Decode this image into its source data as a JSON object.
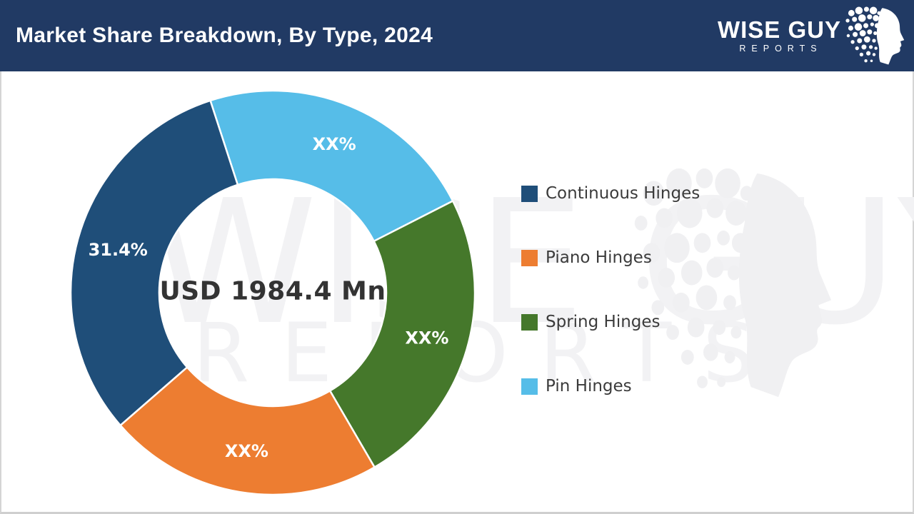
{
  "header": {
    "title": "Market Share Breakdown, By Type, 2024",
    "logo": {
      "line1": "WISE GUY",
      "line2": "REPORTS"
    }
  },
  "watermark": {
    "line1": "WISE GUY",
    "line2": "REPORTS"
  },
  "icons": {
    "logo_face": "wise-guy-dotted-face-profile",
    "watermark_face": "wise-guy-dotted-face-profile"
  },
  "colors": {
    "header_bg": "#213a64",
    "continuous": "#1f4e79",
    "piano": "#ed7d31",
    "spring": "#45782b",
    "pin": "#56bde8",
    "watermark": "#f2f2f4",
    "segment_label": "#ffffff",
    "center_text": "#333333",
    "legend_text": "#3b3b3b"
  },
  "chart_data": {
    "type": "pie",
    "subtype": "donut",
    "title": "Market Share Breakdown, By Type, 2024",
    "center_label": "USD 1984.4 Mn",
    "start_angle_deg": -18,
    "direction": "clockwise",
    "inner_radius_ratio": 0.56,
    "legend_position": "right",
    "segments": [
      {
        "name": "Pin Hinges",
        "label": "XX%",
        "value_pct": 22.5,
        "color": "#56bde8"
      },
      {
        "name": "Spring Hinges",
        "label": "XX%",
        "value_pct": 24.1,
        "color": "#45782b"
      },
      {
        "name": "Piano Hinges",
        "label": "XX%",
        "value_pct": 22.0,
        "color": "#ed7d31"
      },
      {
        "name": "Continuous Hinges",
        "label": "31.4%",
        "value_pct": 31.4,
        "color": "#1f4e79"
      }
    ]
  },
  "legend": {
    "items": [
      {
        "label": "Continuous Hinges",
        "color": "#1f4e79"
      },
      {
        "label": "Piano Hinges",
        "color": "#ed7d31"
      },
      {
        "label": "Spring Hinges",
        "color": "#45782b"
      },
      {
        "label": "Pin Hinges",
        "color": "#56bde8"
      }
    ]
  }
}
